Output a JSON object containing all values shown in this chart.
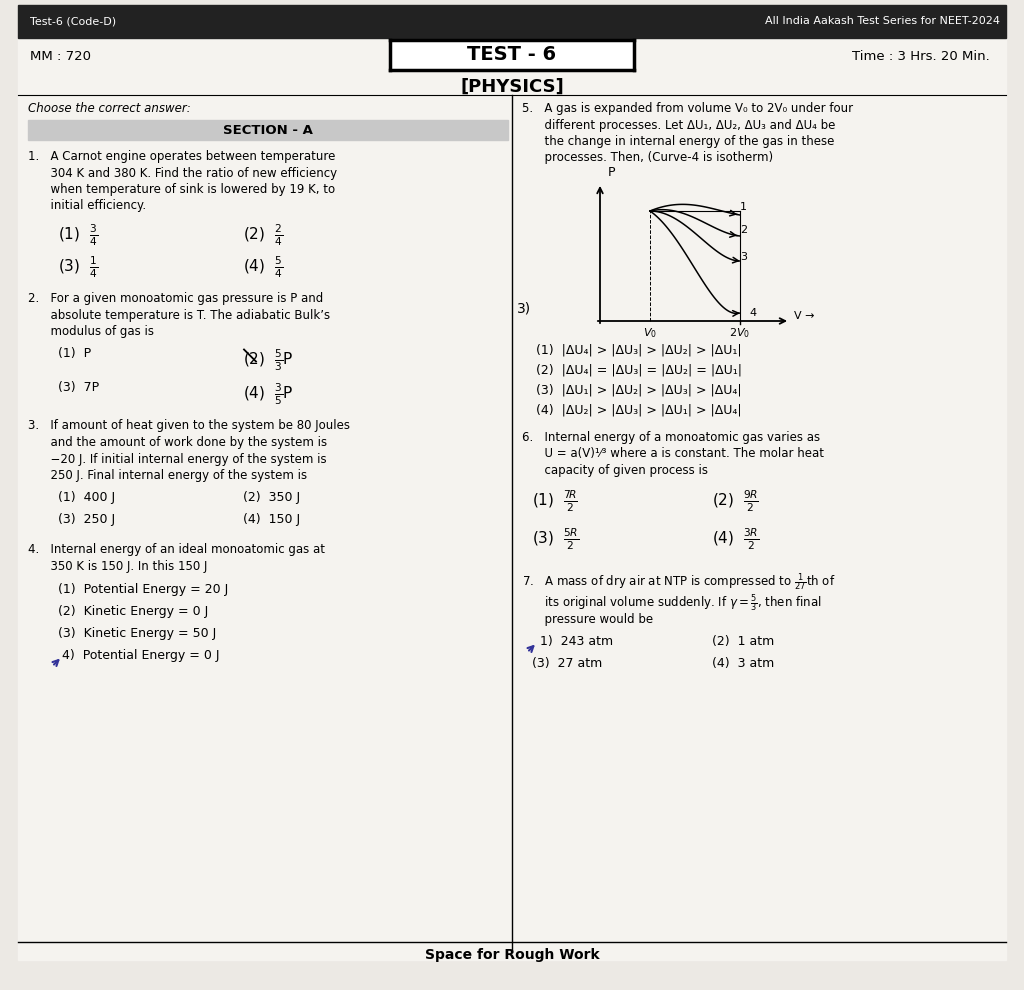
{
  "bg_color": "#ece9e4",
  "header_bg": "#222222",
  "header_text_left": "Test-6 (Code-D)",
  "header_text_right": "All India Aakash Test Series for NEET-2024",
  "mm_text": "MM : 720",
  "title_text": "TEST - 6",
  "time_text": "Time : 3 Hrs. 20 Min.",
  "physics_title": "[PHYSICS]",
  "footer_text": "Space for Rough Work",
  "body_bg": "#f5f3ef"
}
